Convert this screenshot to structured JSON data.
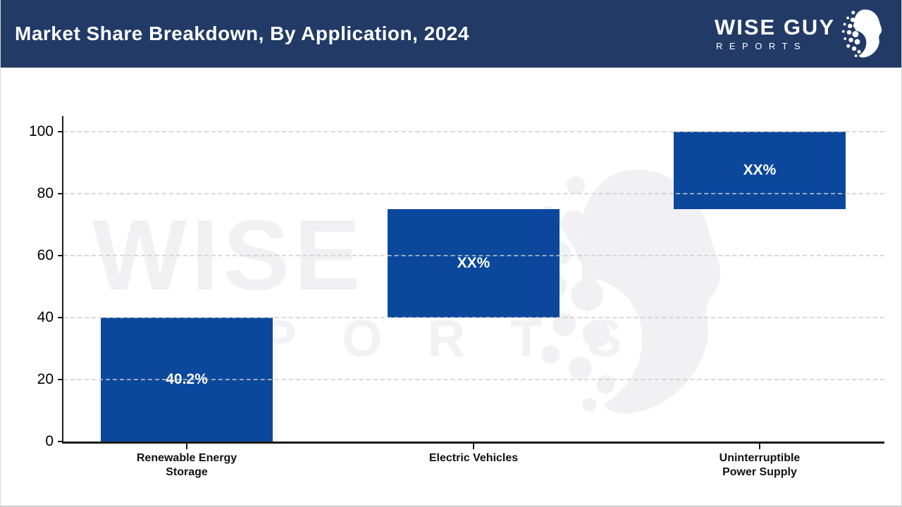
{
  "header": {
    "title": "Market Share Breakdown, By Application, 2024",
    "logo": {
      "wordmark": "WISE GUY",
      "subtext": "REPORTS"
    }
  },
  "watermark": {
    "wordmark": "WISE GUY",
    "subtext": "REPORTS"
  },
  "colors": {
    "header_bg": "#213a66",
    "bar_blue": "#0b489c",
    "bar_label": "#ffffff",
    "axis": "#1a1a1a",
    "gridline": "#cbcbcb",
    "watermark_gray": "#f1f1f4"
  },
  "chart_data": {
    "type": "bar",
    "variant": "waterfall",
    "title": "Market Share Breakdown, By Application, 2024",
    "categories": [
      [
        "Renewable Energy",
        "Storage"
      ],
      [
        "Electric Vehicles"
      ],
      [
        "Uninterruptible",
        "Power Supply"
      ]
    ],
    "segments": [
      {
        "category": "Renewable Energy Storage",
        "start": 0,
        "end": 40,
        "label": "40.2%"
      },
      {
        "category": "Electric Vehicles",
        "start": 40,
        "end": 75,
        "label": "XX%"
      },
      {
        "category": "Uninterruptible Power Supply",
        "start": 75,
        "end": 100,
        "label": "XX%"
      }
    ],
    "yticks": [
      0,
      20,
      40,
      60,
      80,
      100
    ],
    "ylim": [
      0,
      105
    ],
    "xlabel": "",
    "ylabel": "",
    "grid": "dashed-horizontal",
    "legend": "none"
  }
}
